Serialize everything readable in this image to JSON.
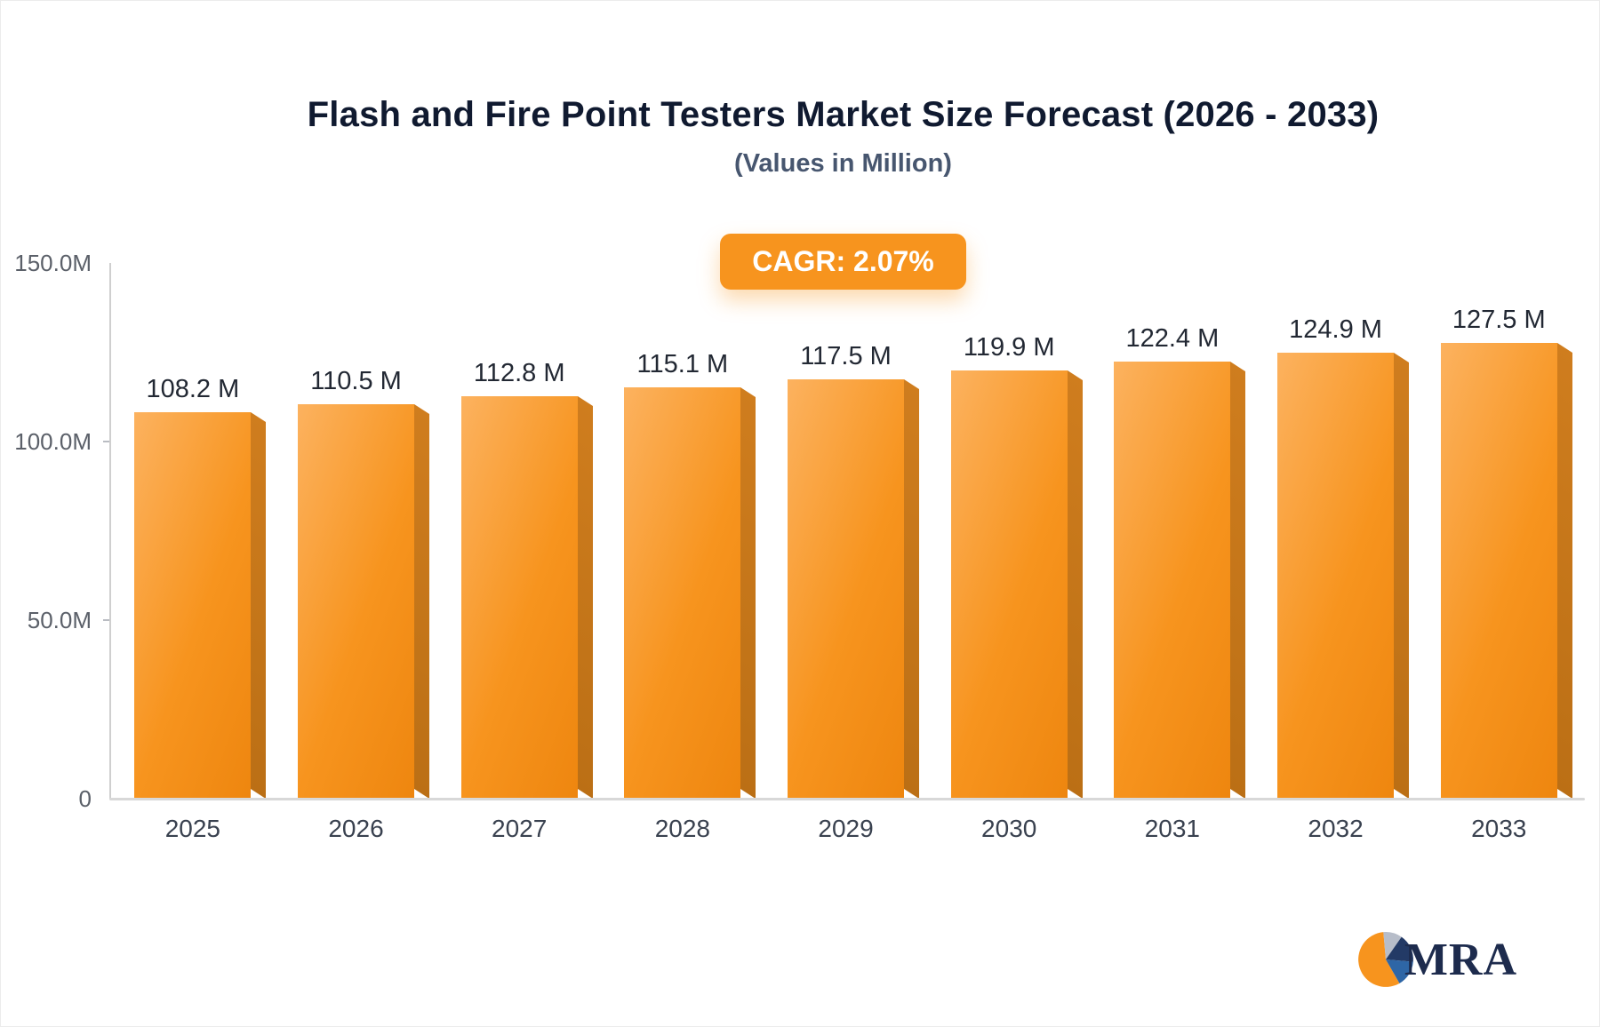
{
  "title": "Flash and Fire Point Testers Market Size Forecast (2026 - 2033)",
  "subtitle": "(Values in Million)",
  "badge": "CAGR: 2.07%",
  "logo": {
    "text": "MRA"
  },
  "chart_data": {
    "type": "bar",
    "title": "Flash and Fire Point Testers Market Size Forecast (2026 - 2033)",
    "subtitle": "(Values in Million)",
    "cagr": "2.07%",
    "categories": [
      "2025",
      "2026",
      "2027",
      "2028",
      "2029",
      "2030",
      "2031",
      "2032",
      "2033"
    ],
    "values": [
      108.2,
      110.5,
      112.8,
      115.1,
      117.5,
      119.9,
      122.4,
      124.9,
      127.5
    ],
    "labels": [
      "108.2 M",
      "110.5 M",
      "112.8 M",
      "115.1 M",
      "117.5 M",
      "119.9 M",
      "122.4 M",
      "124.9 M",
      "127.5 M"
    ],
    "xlabel": "",
    "ylabel": "",
    "ylim": [
      0,
      150
    ],
    "yticks": [
      {
        "label": "150.0M",
        "value": 150
      },
      {
        "label": "100.0M",
        "value": 100
      },
      {
        "label": "50.0M",
        "value": 50
      },
      {
        "label": "0",
        "value": 0
      }
    ],
    "grid": false,
    "legend": false,
    "bar_color": "#F7941E",
    "bar_side_color": "#C97B1D"
  }
}
